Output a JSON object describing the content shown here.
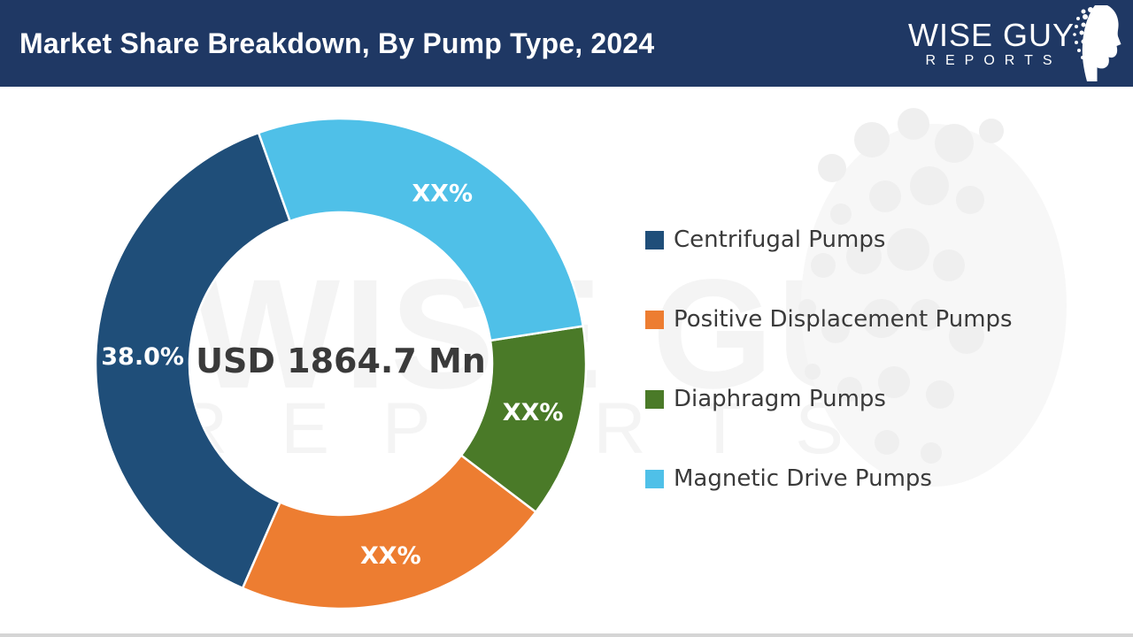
{
  "header": {
    "title": "Market Share Breakdown, By Pump Type, 2024",
    "bg_color": "#1f3864",
    "logo": {
      "line1": "WISE GUY",
      "line2": "REPORTS",
      "face_icon": "dotted-head-profile"
    }
  },
  "watermark": {
    "line1": "WISE GUY",
    "line2": "REPORTS"
  },
  "chart_data": {
    "type": "pie",
    "subtype": "donut",
    "title": "Market Share Breakdown, By Pump Type, 2024",
    "center_label": "USD 1864.7 Mn",
    "legend_position": "right",
    "donut_hole_ratio": 0.62,
    "start_angle_deg": 109.6,
    "direction": "counterclockwise",
    "segments": [
      {
        "label": "Centrifugal Pumps",
        "value_label": "38.0%",
        "share_pct_estimate": 38.0,
        "color": "#1f4e79"
      },
      {
        "label": "Positive Displacement Pumps",
        "value_label": "XX%",
        "share_pct_estimate": 21.2,
        "color": "#ed7d31"
      },
      {
        "label": "Diaphragm Pumps",
        "value_label": "XX%",
        "share_pct_estimate": 12.8,
        "color": "#4a7a28"
      },
      {
        "label": "Magnetic Drive Pumps",
        "value_label": "XX%",
        "share_pct_estimate": 28.0,
        "color": "#4fc0e8"
      }
    ]
  },
  "footer": {
    "bar_color": "#d5d5d5"
  }
}
